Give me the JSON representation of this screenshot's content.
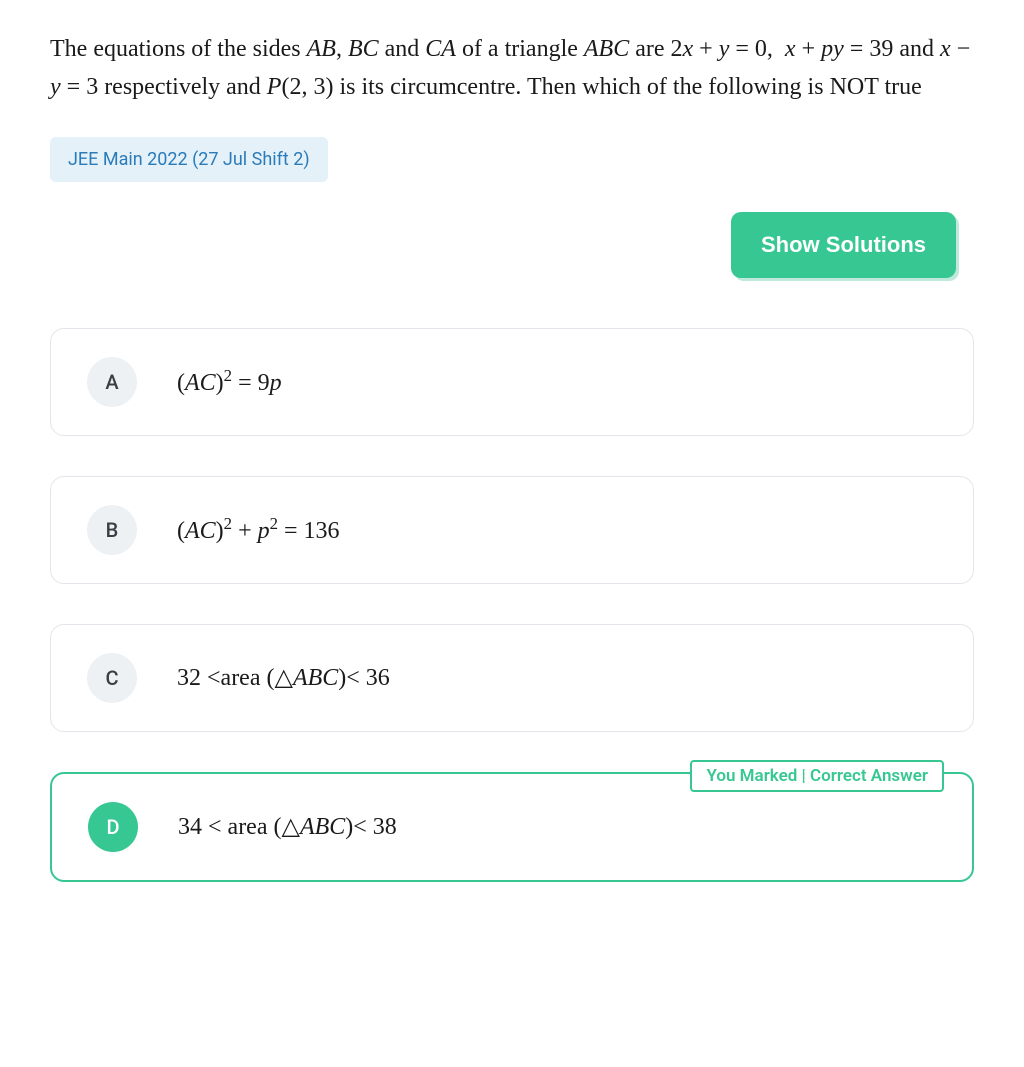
{
  "question": {
    "html": "The equations of the sides <span class='math-it'>AB</span>, <span class='math-it'>BC</span> and <span class='math-it'>CA</span> of a triangle <span class='math-it'>ABC</span> are 2<span class='math-it'>x</span> + <span class='math-it'>y</span> = 0,&nbsp; <span class='math-it'>x</span> + <span class='math-it'>py</span> = 39 and <span class='math-it'>x</span> − <span class='math-it'>y</span> = 3 respectively and <span class='math-it'>P</span>(2, 3) is its circumcentre. Then which of the following is NOT true"
  },
  "tag": {
    "label": "JEE Main 2022 (27 Jul Shift 2)"
  },
  "buttons": {
    "show_solutions": "Show Solutions"
  },
  "badge": {
    "correct": "You Marked | Correct Answer"
  },
  "options": [
    {
      "letter": "A",
      "html": "(<span class='math-it'>AC</span>)<sup>2</sup> = 9<span class='math-it'>p</span>",
      "correct": false
    },
    {
      "letter": "B",
      "html": "(<span class='math-it'>AC</span>)<sup>2</sup> + <span class='math-it'>p</span><sup>2</sup> = 136",
      "correct": false
    },
    {
      "letter": "C",
      "html": "32 &lt;area (△<span class='math-it'>ABC</span>)&lt; 36",
      "correct": false
    },
    {
      "letter": "D",
      "html": "34 &lt; area (△<span class='math-it'>ABC</span>)&lt; 38",
      "correct": true
    }
  ],
  "colors": {
    "accent_green": "#37c793",
    "tag_bg": "#e4f1f9",
    "tag_fg": "#2b7bb9",
    "option_border": "#e2e6ea",
    "letter_bg": "#eef1f4"
  }
}
